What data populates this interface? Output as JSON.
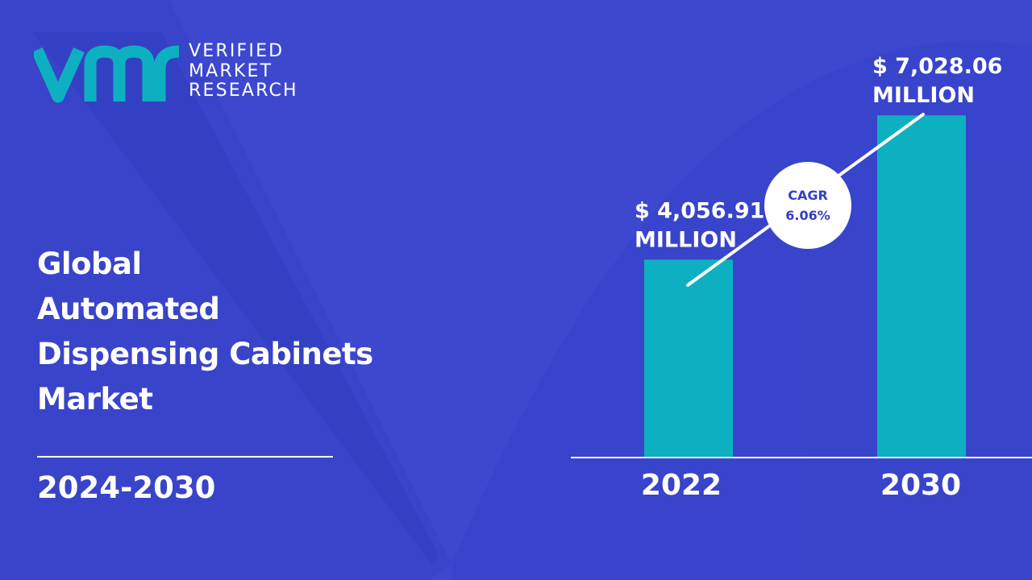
{
  "brand": {
    "line1": "VERIFIED",
    "line2": "MARKET",
    "line3": "RESEARCH",
    "logo_mark": "vmr-logo-mark",
    "color": "#0db0c0"
  },
  "title_lines": [
    "Global",
    "Automated",
    "Dispensing Cabinets",
    "Market"
  ],
  "period": "2024-2030",
  "colors": {
    "background": "#3d48cf",
    "bar": "#0db0c0",
    "text": "#ffffff",
    "badge_text": "#3340c4"
  },
  "chart_data": {
    "type": "bar",
    "categories": [
      "2022",
      "2030"
    ],
    "values": [
      4056.91,
      7028.06
    ],
    "value_labels": [
      [
        "$ 4,056.91",
        "MILLION"
      ],
      [
        "$ 7,028.06",
        "MILLION"
      ]
    ],
    "cagr_label": "CAGR",
    "cagr_value": "6.06%",
    "grid": false,
    "legend": "none"
  }
}
